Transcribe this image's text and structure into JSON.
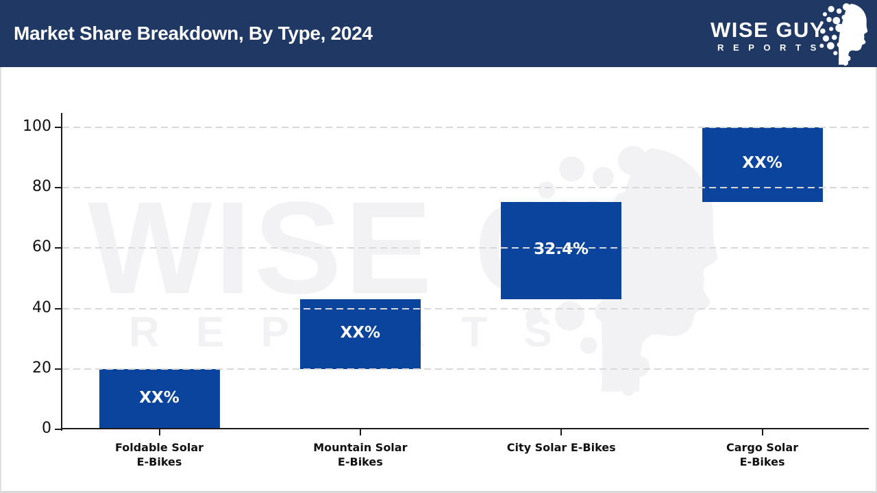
{
  "header": {
    "title": "Market Share Breakdown, By Type, 2024",
    "logo": {
      "name": "WISE GUY",
      "subtitle": "R E P O R T S"
    }
  },
  "watermark": {
    "name": "WISE GU",
    "subtitle": "R E P O R T S"
  },
  "chart_data": {
    "type": "bar",
    "variant": "waterfall",
    "title": "Market Share Breakdown, By Type, 2024",
    "categories": [
      "Foldable Solar E-Bikes",
      "Mountain Solar E-Bikes",
      "City Solar E-Bikes",
      "Cargo Solar E-Bikes"
    ],
    "category_label_lines": [
      [
        "Foldable Solar",
        "E-Bikes"
      ],
      [
        "Mountain Solar",
        "E-Bikes"
      ],
      [
        "City Solar E-Bikes"
      ],
      [
        "Cargo Solar",
        "E-Bikes"
      ]
    ],
    "bars": [
      {
        "category": "Foldable Solar E-Bikes",
        "start": 0,
        "end": 20,
        "value_label": "XX%"
      },
      {
        "category": "Mountain Solar E-Bikes",
        "start": 20,
        "end": 43,
        "value_label": "XX%"
      },
      {
        "category": "City Solar E-Bikes",
        "start": 43,
        "end": 75.4,
        "value_label": "32.4%"
      },
      {
        "category": "Cargo Solar E-Bikes",
        "start": 75.4,
        "end": 100,
        "value_label": "XX%"
      }
    ],
    "yticks": [
      0,
      20,
      40,
      60,
      80,
      100
    ],
    "ylim": [
      0,
      104.8
    ],
    "xlabel": "",
    "ylabel": "",
    "grid": "horizontal-dashed",
    "legend_position": "none",
    "colors": {
      "bar": "#0A449C",
      "bar_label": "#FFFFFF",
      "gridline": "#D9D9D9",
      "axis": "#1A1A1A",
      "tick_label": "#111111",
      "header_bg": "#1F3864",
      "header_text": "#FFFFFF",
      "watermark": "#F2F2F5",
      "background": "#FFFFFF"
    }
  }
}
